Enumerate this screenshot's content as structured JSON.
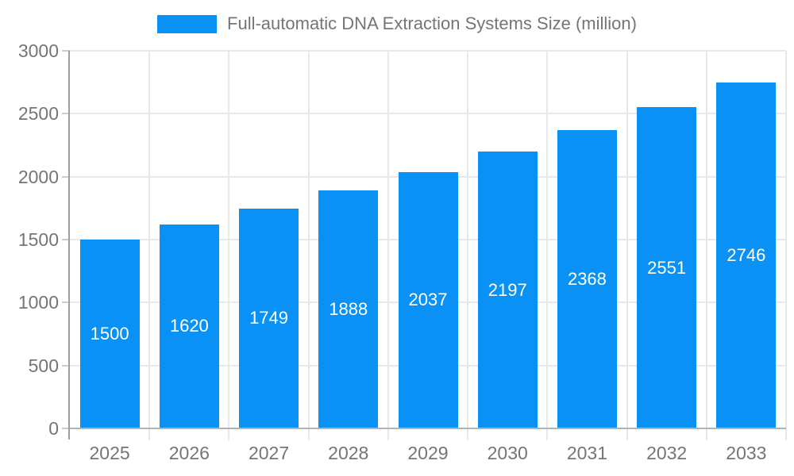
{
  "legend": {
    "label": "Full-automatic DNA Extraction Systems Size (million)",
    "swatch_color": "#0991f5"
  },
  "colors": {
    "bar": "#0991f5",
    "bar_value_text": "#ffffff",
    "axis_text": "#757575",
    "gridline": "#e8e8e8",
    "axis_line": "#9e9e9e",
    "baseline": "#b3b3b3"
  },
  "chart_data": {
    "type": "bar",
    "title": "Full-automatic DNA Extraction Systems Size (million)",
    "categories": [
      "2025",
      "2026",
      "2027",
      "2028",
      "2029",
      "2030",
      "2031",
      "2032",
      "2033"
    ],
    "values": [
      1500,
      1620,
      1749,
      1888,
      2037,
      2197,
      2368,
      2551,
      2746
    ],
    "value_labels": [
      "1500",
      "1620",
      "1749",
      "1888",
      "2037",
      "2197",
      "2368",
      "2551",
      "2746"
    ],
    "xlabel": "",
    "ylabel": "",
    "ylim": [
      0,
      3000
    ],
    "y_ticks": [
      0,
      500,
      1000,
      1500,
      2000,
      2500,
      3000
    ],
    "y_tick_labels": [
      "0",
      "500",
      "1000",
      "1500",
      "2000",
      "2500",
      "3000"
    ],
    "grid": "horizontal-and-vertical",
    "legend_position": "top-center",
    "bar_color": "#0991f5",
    "value_label_position": "center-of-bar"
  }
}
